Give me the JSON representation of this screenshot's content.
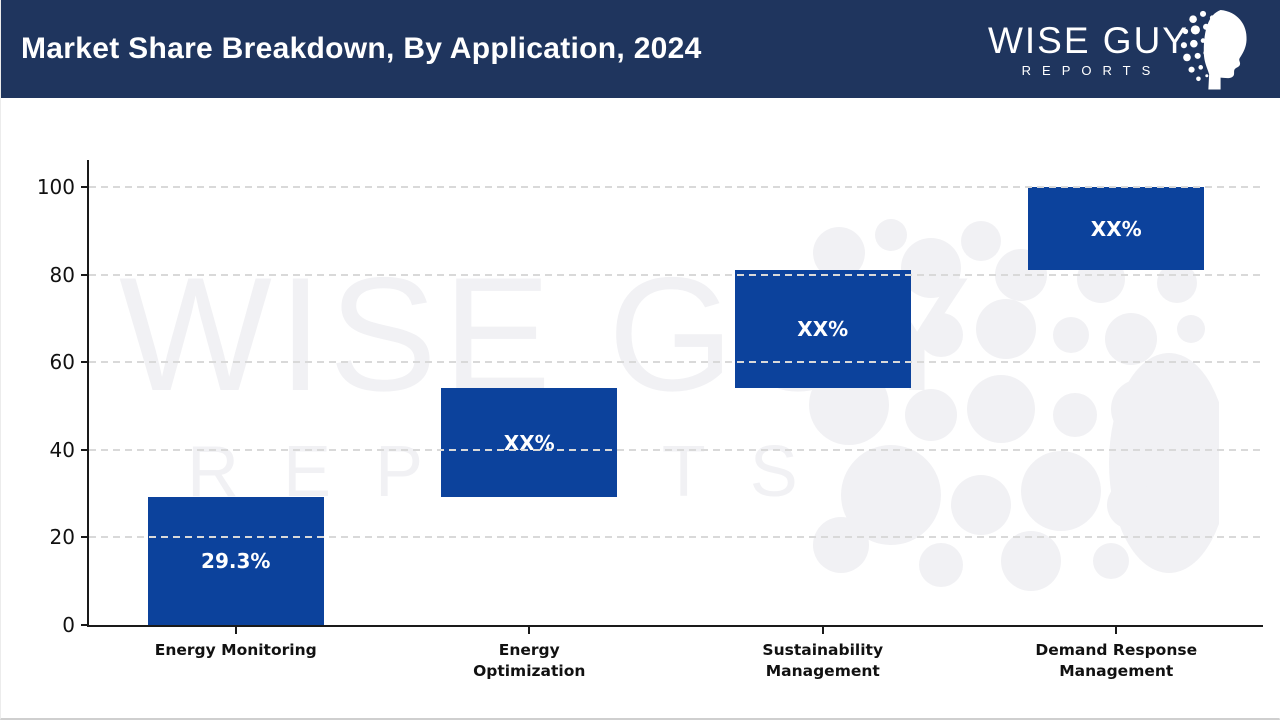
{
  "header": {
    "title": "Market Share Breakdown, By Application, 2024",
    "background_color": "#1f355e",
    "logo": {
      "main": "WISE GUY",
      "sub": "REPORTS"
    }
  },
  "watermark": {
    "main": "WISE GUY",
    "sub": "REPORTS"
  },
  "chart_data": {
    "type": "bar",
    "subtype": "waterfall",
    "title": "Market Share Breakdown, By Application, 2024",
    "categories": [
      "Energy Monitoring",
      "Energy Optimization",
      "Sustainability Management",
      "Demand Response Management"
    ],
    "category_lines": [
      [
        "Energy Monitoring"
      ],
      [
        "Energy",
        "Optimization"
      ],
      [
        "Sustainability",
        "Management"
      ],
      [
        "Demand Response",
        "Management"
      ]
    ],
    "bars": [
      {
        "start": 0,
        "end": 29.3,
        "label": "29.3%"
      },
      {
        "start": 29.3,
        "end": 54,
        "label": "XX%"
      },
      {
        "start": 54,
        "end": 81,
        "label": "XX%"
      },
      {
        "start": 81,
        "end": 100,
        "label": "XX%"
      }
    ],
    "ylim": [
      0,
      100
    ],
    "yticks": [
      0,
      20,
      40,
      60,
      80,
      100
    ],
    "xlabel": "",
    "ylabel": "",
    "grid": "horizontal-dashed",
    "legend": "none",
    "bar_color": "#0c429c",
    "bar_label_color": "#ffffff",
    "axis_color": "#1a1a1a",
    "gridline_color": "#d9d9d9"
  }
}
